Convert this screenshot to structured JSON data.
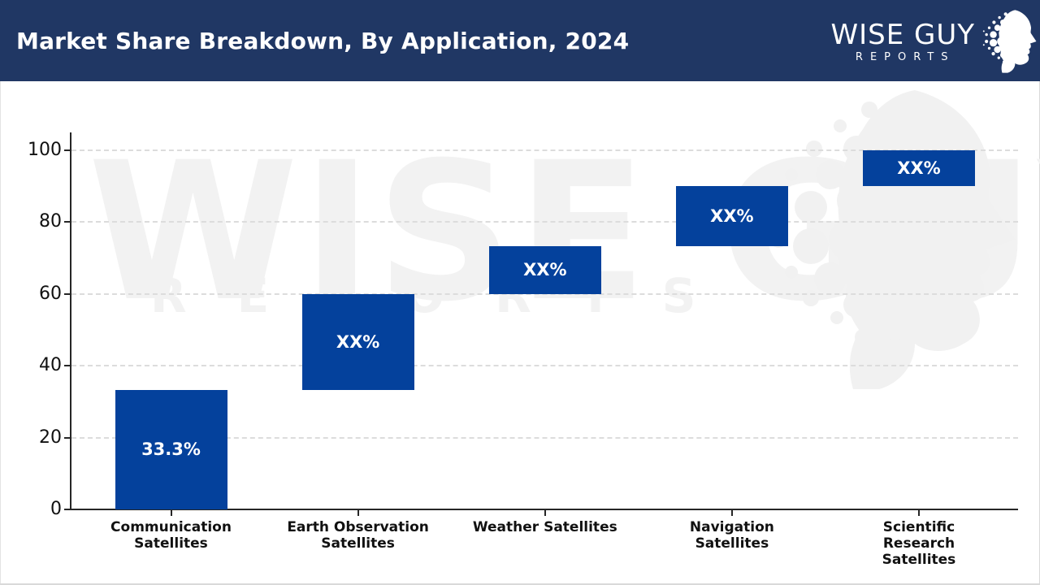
{
  "header": {
    "title": "Market Share Breakdown, By Application, 2024",
    "background_color": "#203764",
    "logo": {
      "line1": "WISE GUY",
      "line2": "REPORTS"
    }
  },
  "watermark": {
    "line1": "WISE GUY",
    "line2": "REPORTS"
  },
  "chart_data": {
    "type": "bar",
    "subtype": "waterfall-style market share breakdown (floating segment bars)",
    "title": "Market Share Breakdown, By Application, 2024",
    "categories": [
      "Communication Satellites",
      "Earth Observation Satellites",
      "Weather Satellites",
      "Navigation Satellites",
      "Scientific Research Satellites"
    ],
    "category_label_lines": [
      [
        "Communication",
        "Satellites"
      ],
      [
        "Earth Observation",
        "Satellites"
      ],
      [
        "Weather Satellites"
      ],
      [
        "Navigation",
        "Satellites"
      ],
      [
        "Scientific",
        "Research",
        "Satellites"
      ]
    ],
    "segments": [
      {
        "category": "Communication Satellites",
        "start": 0,
        "end": 33.3,
        "label": "33.3%"
      },
      {
        "category": "Earth Observation Satellites",
        "start": 33.3,
        "end": 60,
        "label": "XX%"
      },
      {
        "category": "Weather Satellites",
        "start": 60,
        "end": 73.3,
        "label": "XX%"
      },
      {
        "category": "Navigation Satellites",
        "start": 73.3,
        "end": 90,
        "label": "XX%"
      },
      {
        "category": "Scientific Research Satellites",
        "start": 90,
        "end": 100,
        "label": "XX%"
      }
    ],
    "y_ticks": [
      0,
      20,
      40,
      60,
      80,
      100
    ],
    "ylim": [
      0,
      105
    ],
    "xlabel": "",
    "ylabel": "",
    "grid": "horizontal dashed gridlines",
    "legend": "none",
    "bar_color": "#04419C",
    "bar_label_color": "#ffffff",
    "axis_color": "#262626",
    "grid_color": "#dcdcdc",
    "masked_value_label": "XX%"
  }
}
